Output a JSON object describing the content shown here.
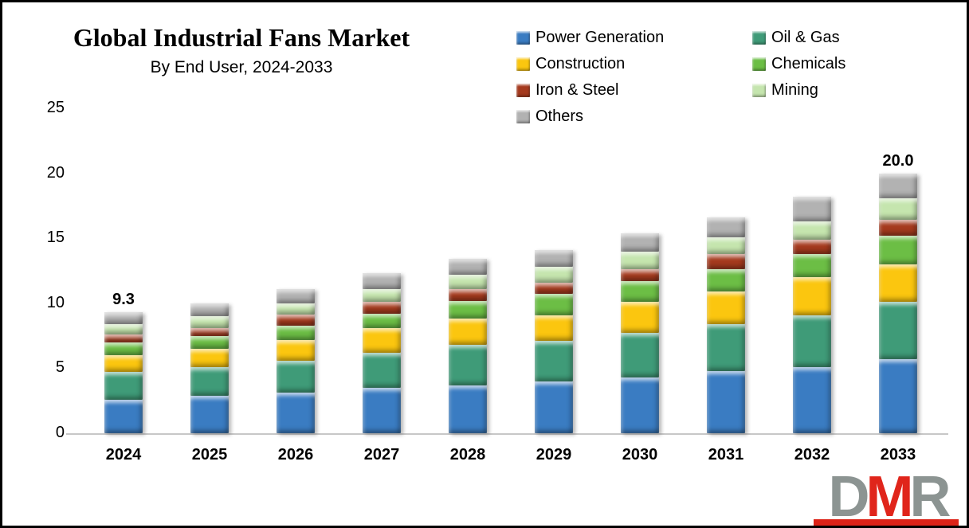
{
  "header": {
    "title": "Global Industrial Fans Market",
    "subtitle": "By End User, 2024-2033"
  },
  "chart_data": {
    "type": "bar",
    "stacked": true,
    "title": "Global Industrial Fans Market",
    "subtitle": "By End User, 2024-2033",
    "categories": [
      "2024",
      "2025",
      "2026",
      "2027",
      "2028",
      "2029",
      "2030",
      "2031",
      "2032",
      "2033"
    ],
    "series": [
      {
        "name": "Power Generation",
        "color": "#3a7cc2",
        "values": [
          2.6,
          2.9,
          3.1,
          3.5,
          3.7,
          4.0,
          4.3,
          4.8,
          5.1,
          5.7
        ]
      },
      {
        "name": "Oil & Gas",
        "color": "#3f9b78",
        "values": [
          2.1,
          2.2,
          2.5,
          2.7,
          3.1,
          3.1,
          3.4,
          3.6,
          4.0,
          4.4
        ]
      },
      {
        "name": "Construction",
        "color": "#fbc60f",
        "values": [
          1.3,
          1.4,
          1.6,
          1.9,
          2.0,
          2.0,
          2.4,
          2.5,
          2.9,
          2.9
        ]
      },
      {
        "name": "Chemicals",
        "color": "#6cbe45",
        "values": [
          1.0,
          1.0,
          1.1,
          1.1,
          1.4,
          1.6,
          1.6,
          1.7,
          1.8,
          2.2
        ]
      },
      {
        "name": "Iron & Steel",
        "color": "#a53a1e",
        "values": [
          0.6,
          0.6,
          0.8,
          0.9,
          0.9,
          0.9,
          0.9,
          1.2,
          1.1,
          1.2
        ]
      },
      {
        "name": "Mining",
        "color": "#c5e5ae",
        "values": [
          0.8,
          0.9,
          0.9,
          1.0,
          1.1,
          1.2,
          1.4,
          1.3,
          1.4,
          1.7
        ]
      },
      {
        "name": "Others",
        "color": "#b2b2b2",
        "values": [
          0.9,
          1.0,
          1.1,
          1.2,
          1.2,
          1.3,
          1.4,
          1.5,
          1.9,
          1.9
        ]
      }
    ],
    "totals": [
      9.3,
      10.0,
      11.1,
      12.3,
      13.4,
      14.1,
      15.4,
      16.6,
      18.2,
      20.0
    ],
    "bar_labels": [
      {
        "category": "2024",
        "text": "9.3"
      },
      {
        "category": "2033",
        "text": "20.0"
      }
    ],
    "ylim": [
      0,
      25
    ],
    "yticks": [
      0,
      5,
      10,
      15,
      20,
      25
    ],
    "grid": false,
    "legend_position": "top-right",
    "legend_columns": 2
  },
  "logo": {
    "letters": [
      {
        "char": "D",
        "color": "#8c9492"
      },
      {
        "char": "M",
        "color": "#e0251b"
      },
      {
        "char": "R",
        "color": "#8c9492"
      }
    ],
    "bar_color": "#dd2318"
  }
}
